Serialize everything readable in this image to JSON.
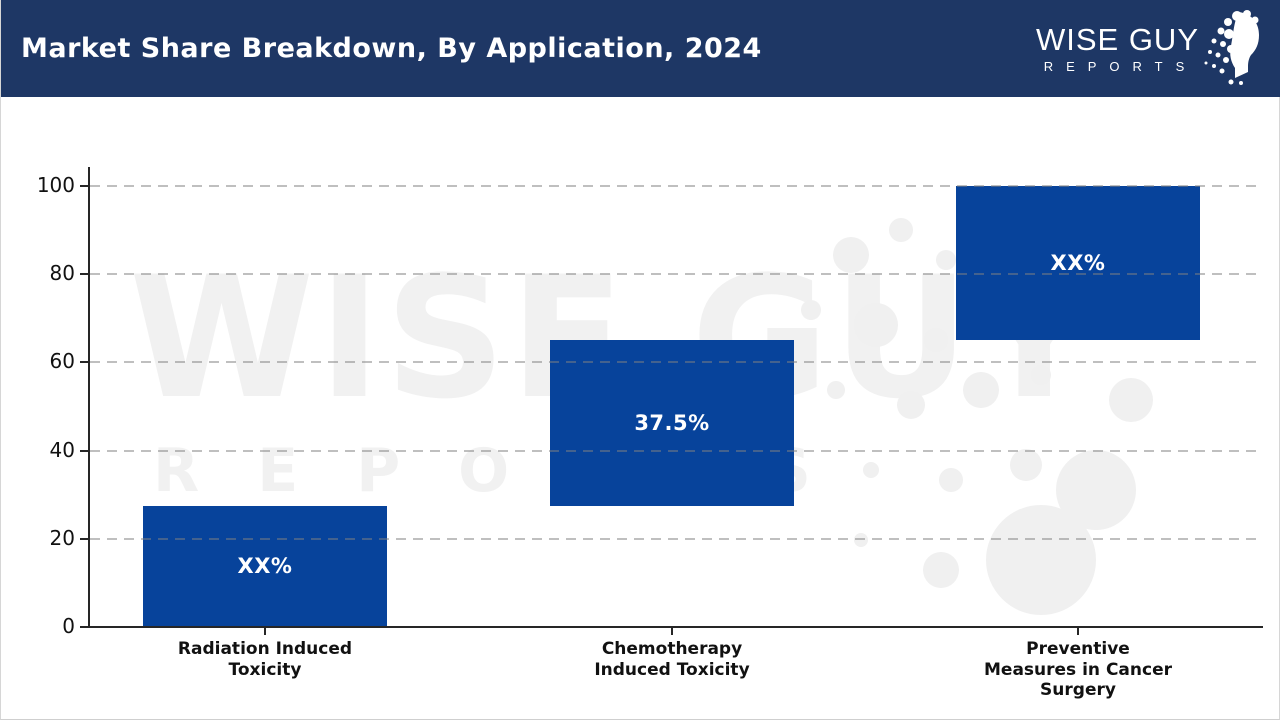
{
  "header": {
    "title": "Market Share Breakdown, By Application, 2024",
    "logo": {
      "line1": "WISE GUY",
      "line2": "REPORTS"
    }
  },
  "watermark": {
    "line1": "WISE GUY",
    "line2": "REPORTS"
  },
  "chart_data": {
    "type": "bar",
    "variant": "floating-segment",
    "title": "Market Share Breakdown, By Application, 2024",
    "categories": [
      "Radiation Induced\nToxicity",
      "Chemotherapy\nInduced Toxicity",
      "Preventive\nMeasures in Cancer\nSurgery"
    ],
    "segments": [
      {
        "category": "Radiation Induced Toxicity",
        "start": 0,
        "end": 27.5,
        "label": "XX%"
      },
      {
        "category": "Chemotherapy Induced Toxicity",
        "start": 27.5,
        "end": 65,
        "label": "37.5%"
      },
      {
        "category": "Preventive Measures in Cancer Surgery",
        "start": 65,
        "end": 100,
        "label": "XX%"
      }
    ],
    "ylim": [
      0,
      100
    ],
    "yticks": [
      0,
      20,
      40,
      60,
      80,
      100
    ],
    "grid": "horizontal-dashed",
    "legend": "none",
    "bar_color": "#07439b",
    "label_color": "#ffffff"
  }
}
